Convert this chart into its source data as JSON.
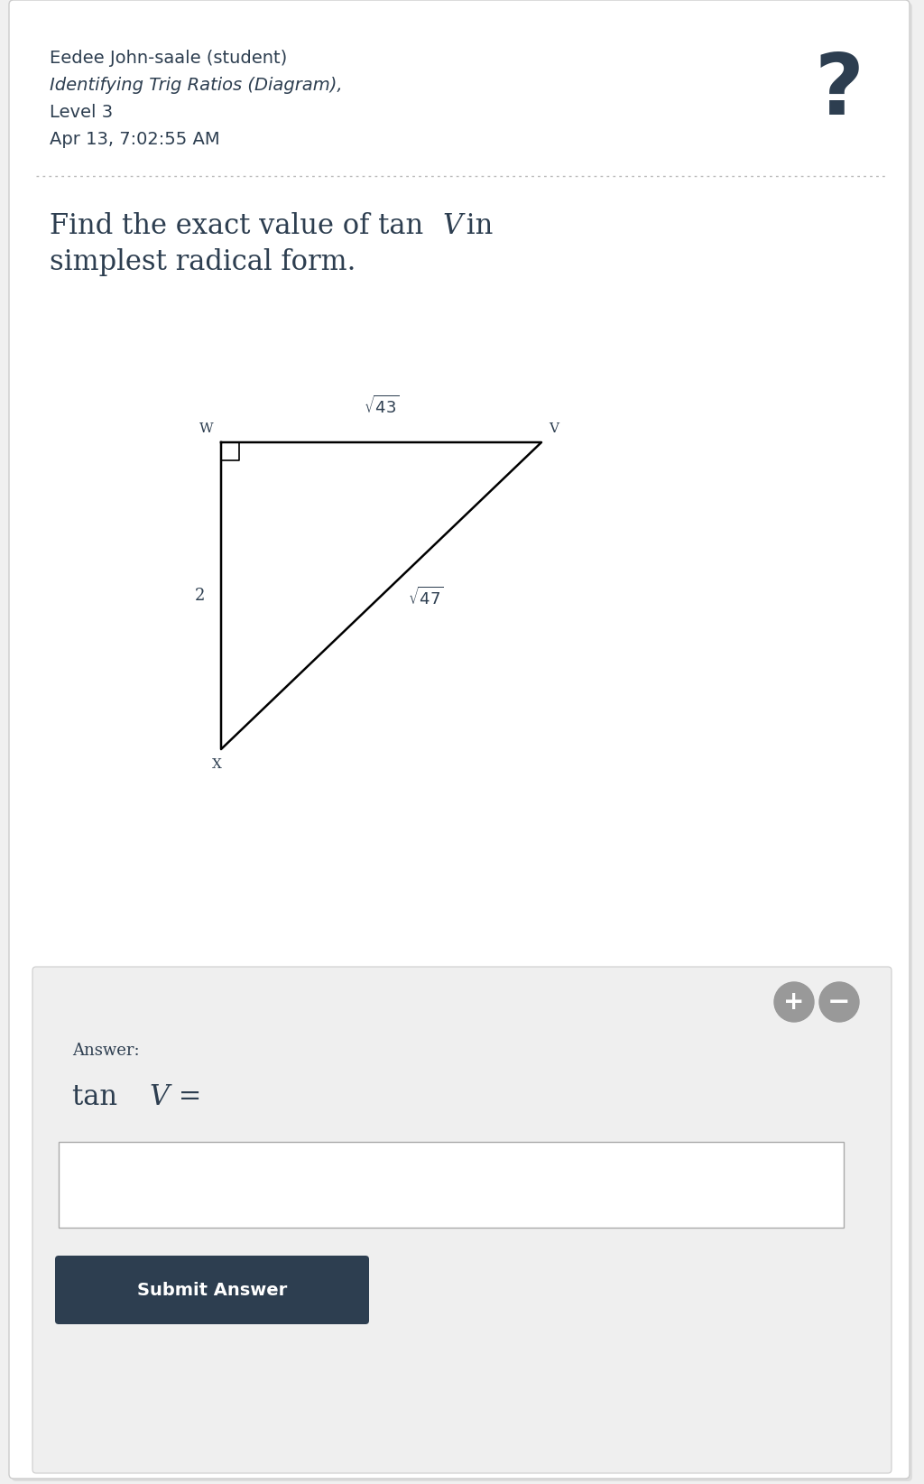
{
  "bg_color": "#f0f0f0",
  "card_color": "#ffffff",
  "header_line1": "Eedee John-saale (student)",
  "header_line2": "Identifying Trig Ratios (Diagram),",
  "header_line3": "Level 3",
  "header_line4": "Apr 13, 7:02:55 AM",
  "text_color": "#2d3e50",
  "divider_color": "#bbbbbb",
  "question_mark_color": "#2d3e50",
  "answer_box_bg": "#efefef",
  "input_box_color": "#ffffff",
  "button_color": "#2d3e50",
  "button_text": "Submit Answer",
  "button_text_color": "#ffffff",
  "plus_minus_color": "#999999",
  "header_font_size": 14,
  "question_font_size": 22,
  "triangle_label_font_size": 11,
  "triangle_side_font_size": 13,
  "answer_label_font_size": 13,
  "answer_expr_font_size": 22
}
